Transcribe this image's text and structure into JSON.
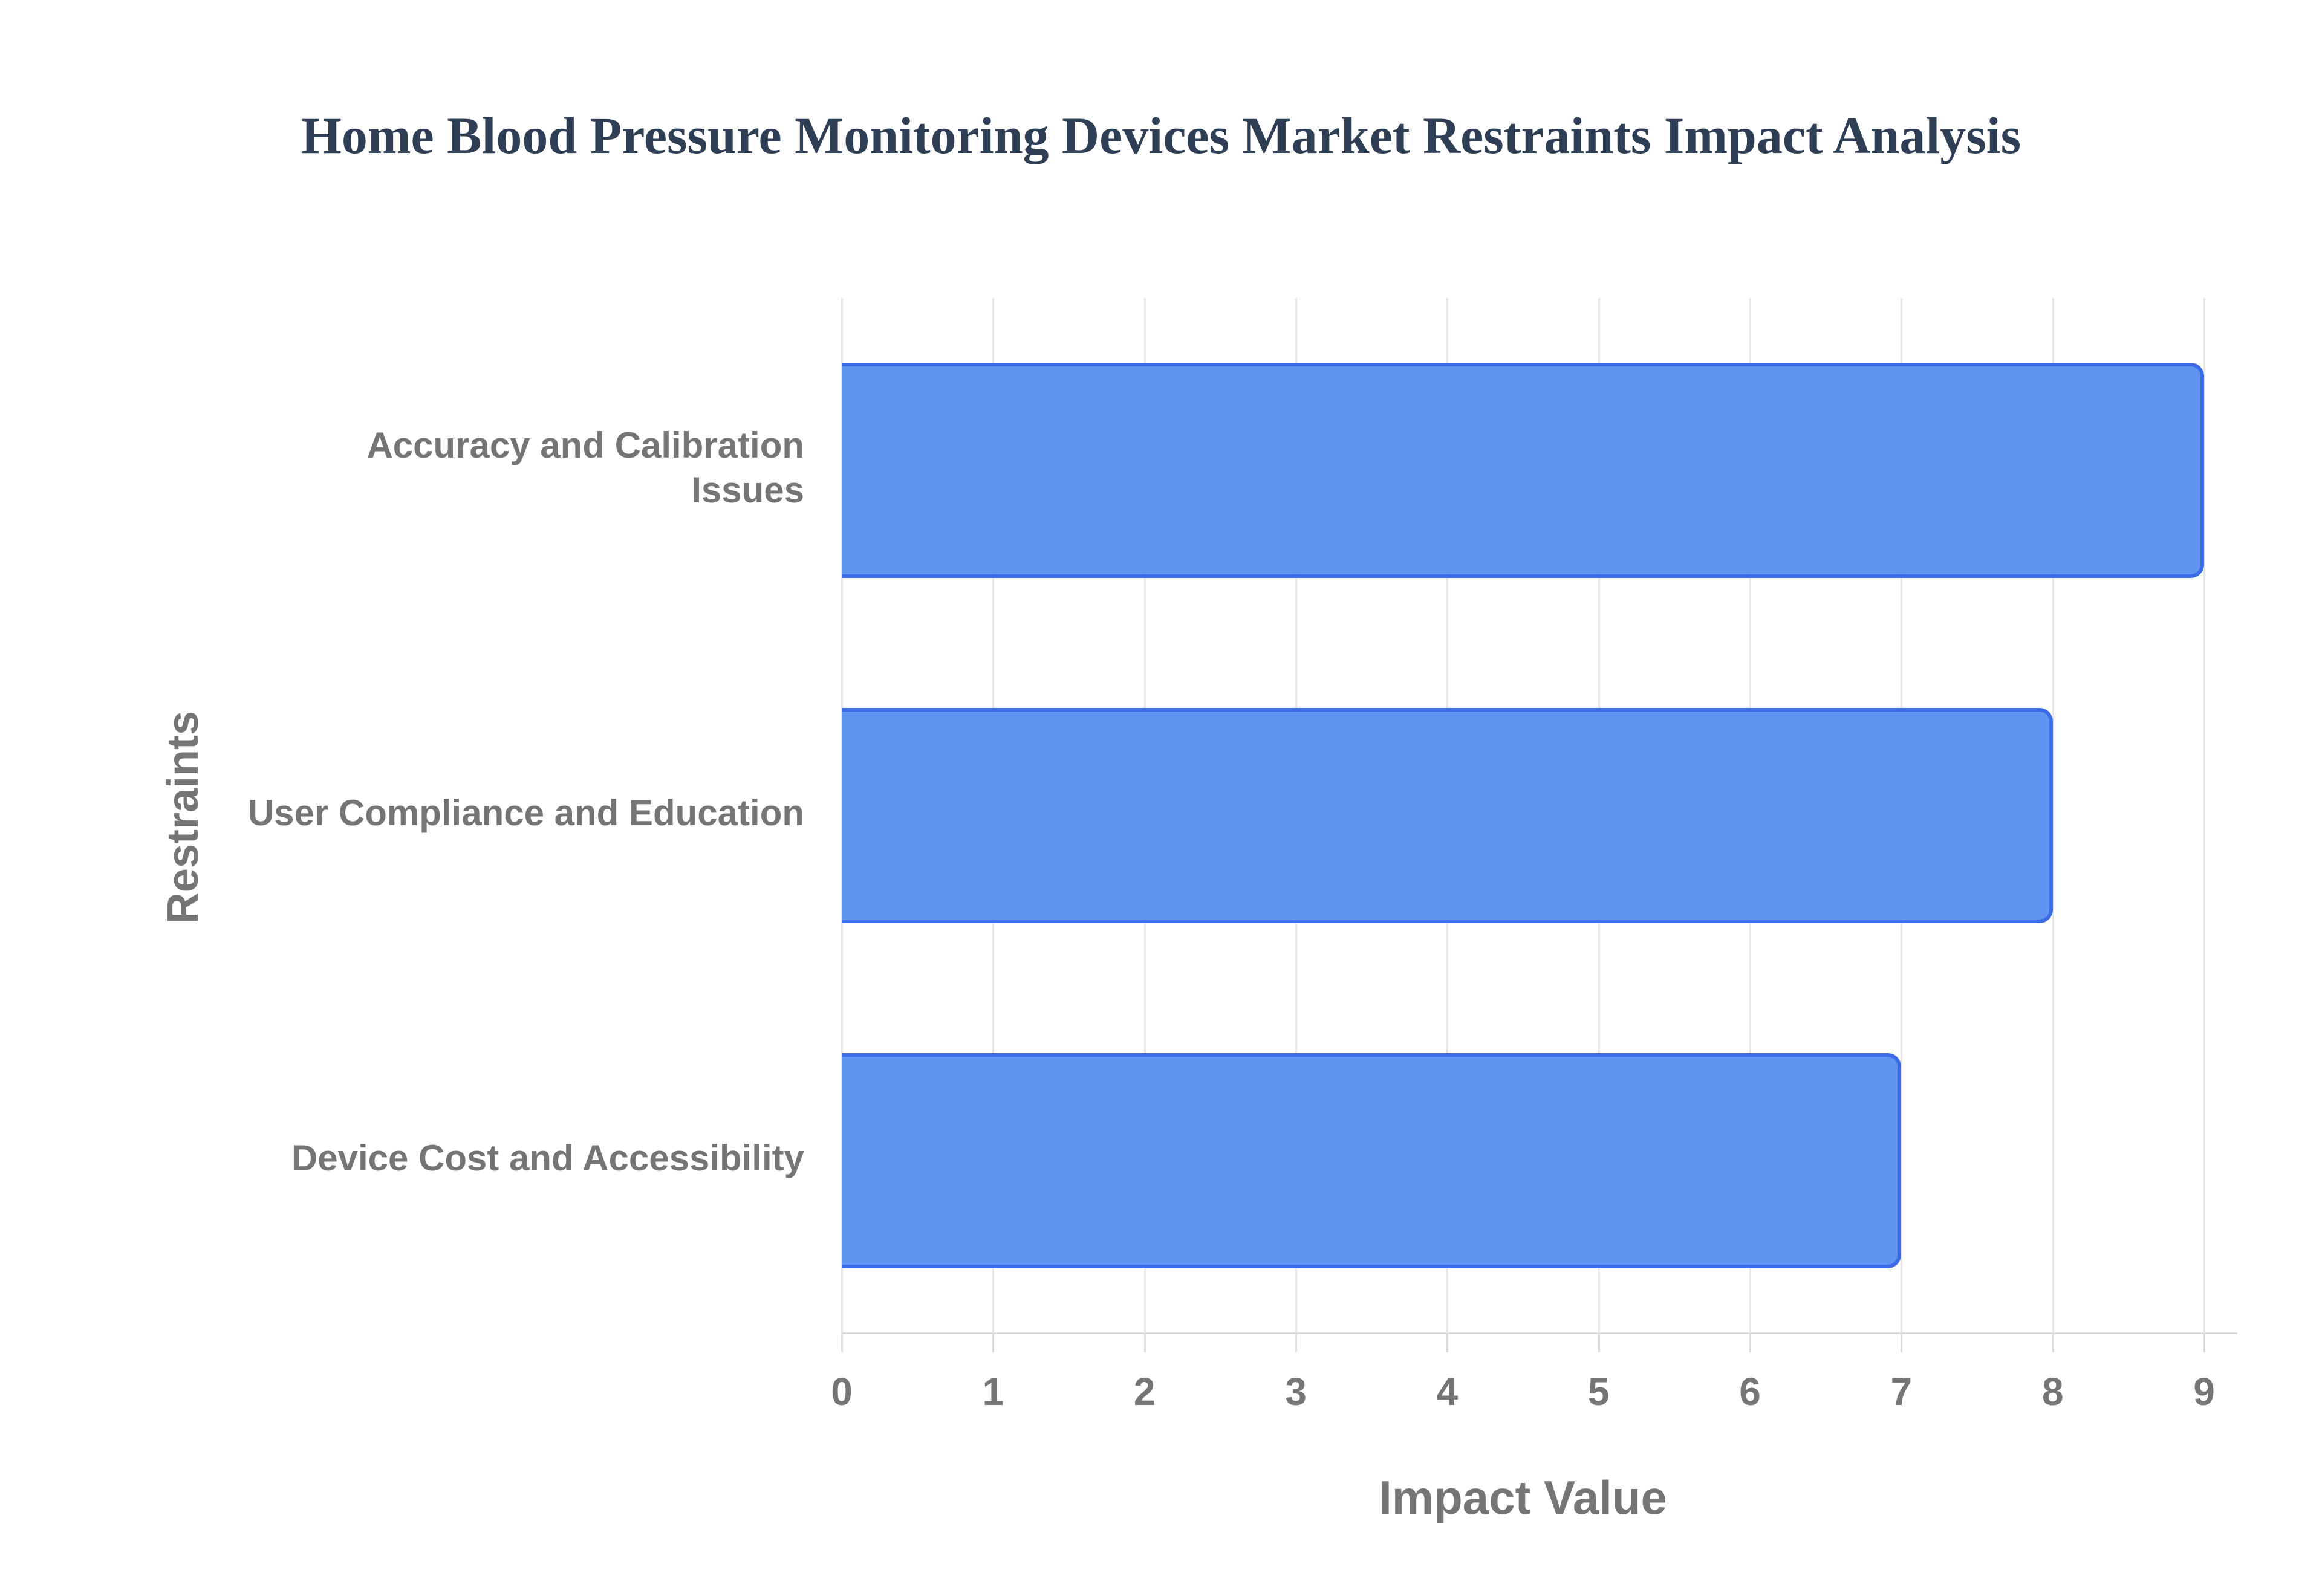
{
  "title": "Home Blood Pressure Monitoring Devices Market Restraints Impact Analysis",
  "chart_data": {
    "type": "bar",
    "orientation": "horizontal",
    "title": "Home Blood Pressure Monitoring Devices Market Restraints Impact Analysis",
    "categories": [
      "Accuracy and Calibration Issues",
      "User Compliance and Education",
      "Device Cost and Accessibility"
    ],
    "category_label_lines": [
      [
        "Accuracy and Calibration",
        "Issues"
      ],
      [
        "User Compliance and Education"
      ],
      [
        "Device Cost and Accessibility"
      ]
    ],
    "values": [
      9,
      8,
      7
    ],
    "xlabel": "Impact Value",
    "ylabel": "Restraints",
    "xlim": [
      0,
      9
    ],
    "xticks": [
      "0",
      "1",
      "2",
      "3",
      "4",
      "5",
      "6",
      "7",
      "8",
      "9"
    ],
    "grid": true,
    "legend": "none",
    "colors": {
      "bar_fill": "#588df0",
      "bar_border": "#3b6ce5",
      "gridline": "#e6e6e6",
      "axis_line": "#dcdcdc",
      "label_text": "#757575",
      "title_text": "#2e3f55",
      "background": "#ffffff"
    }
  }
}
